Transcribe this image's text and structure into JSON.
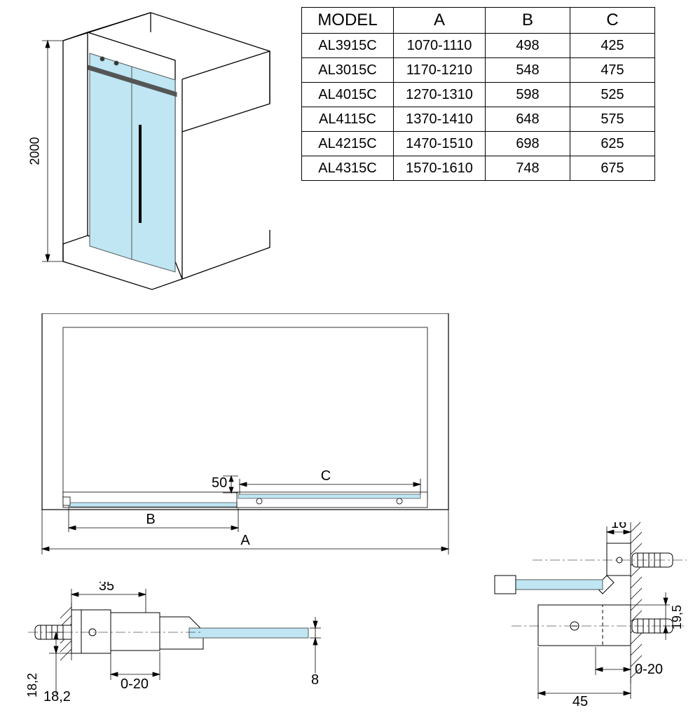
{
  "colors": {
    "glass": "#bfe6f2",
    "glass_stroke": "#53585b",
    "line": "#000000",
    "grey": "#7a7d80",
    "dim": "#000000"
  },
  "iso": {
    "height_label": "2000"
  },
  "table": {
    "headers": [
      "MODEL",
      "A",
      "B",
      "C"
    ],
    "rows": [
      [
        "AL3915C",
        "1070-1110",
        "498",
        "425"
      ],
      [
        "AL3015C",
        "1170-1210",
        "548",
        "475"
      ],
      [
        "AL4015C",
        "1270-1310",
        "598",
        "525"
      ],
      [
        "AL4115C",
        "1370-1410",
        "648",
        "575"
      ],
      [
        "AL4215C",
        "1470-1510",
        "698",
        "625"
      ],
      [
        "AL4315C",
        "1570-1610",
        "748",
        "675"
      ]
    ]
  },
  "plan": {
    "A": "A",
    "B": "B",
    "C": "C",
    "fifty": "50"
  },
  "detail1": {
    "d35": "35",
    "d0_20": "0-20",
    "d18_2": "18,2",
    "d8": "8"
  },
  "detail2": {
    "d16": "16",
    "d19_5": "19,5",
    "d0_20": "0-20",
    "d45": "45"
  }
}
